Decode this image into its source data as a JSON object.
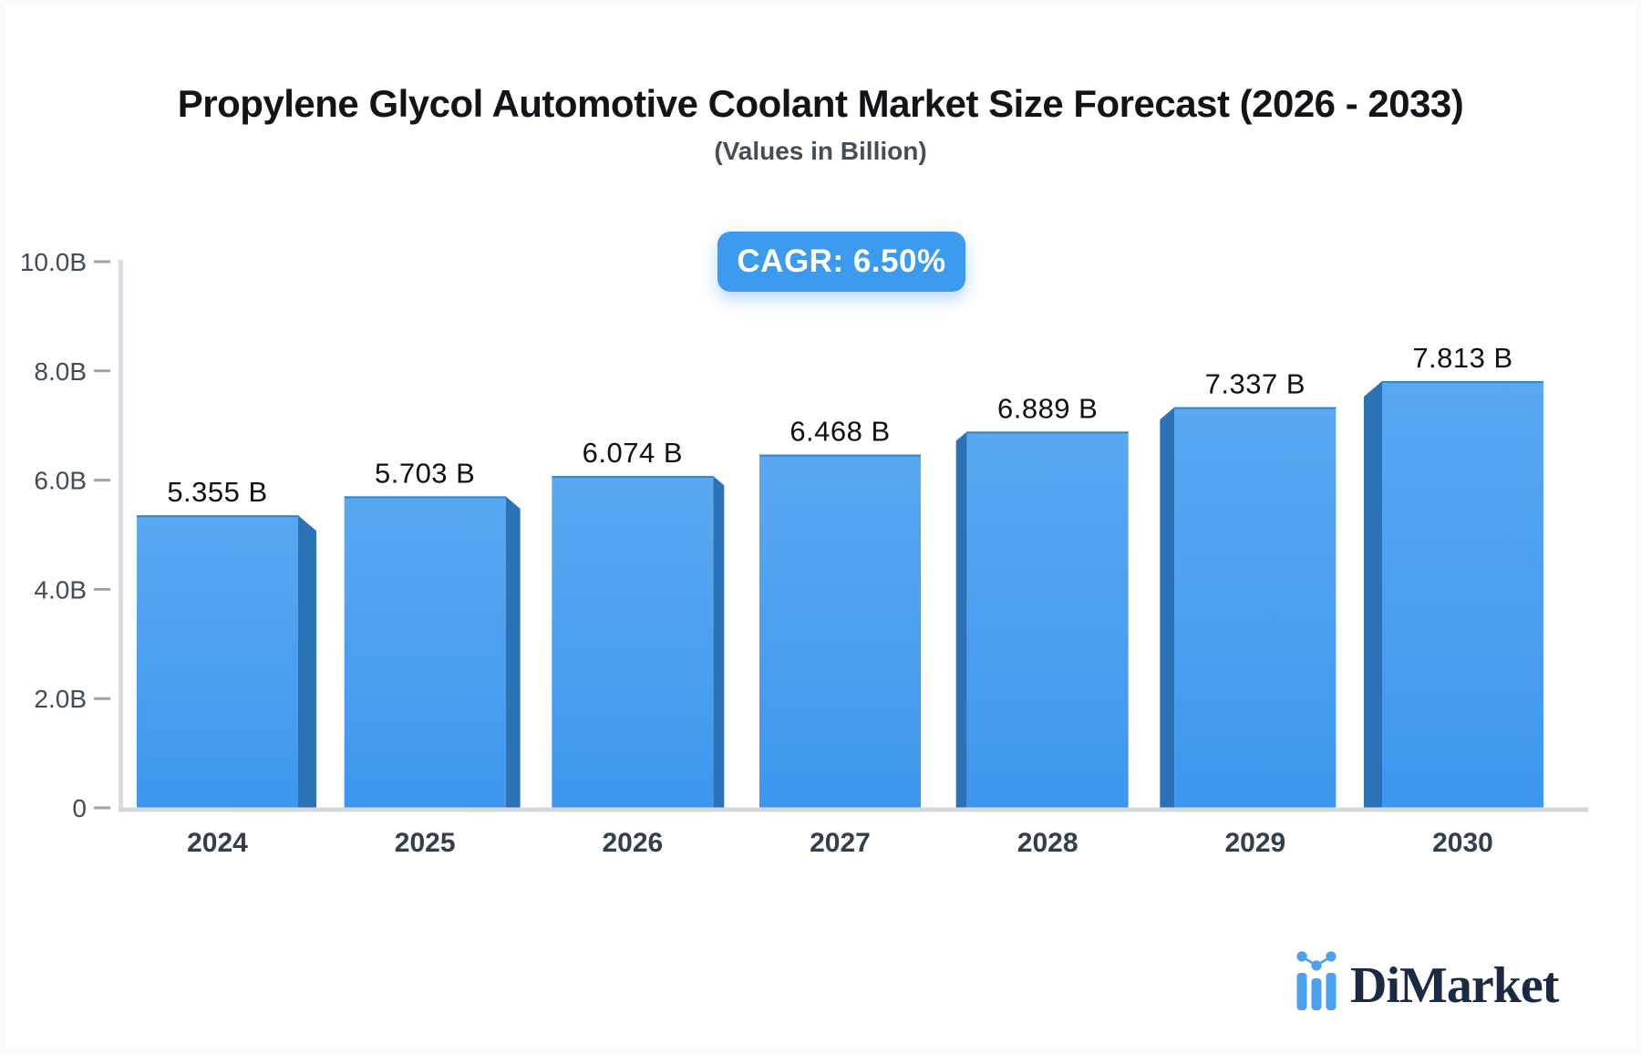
{
  "header": {
    "title": "Propylene Glycol Automotive Coolant Market Size Forecast (2026 - 2033)",
    "subtitle": "(Values in Billion)"
  },
  "badge": {
    "label": "CAGR: 6.50%"
  },
  "chart_data": {
    "type": "bar",
    "title": "Propylene Glycol Automotive Coolant Market Size Forecast (2026 - 2033)",
    "subtitle": "(Values in Billion)",
    "unit": "Billion",
    "categories": [
      "2024",
      "2025",
      "2026",
      "2027",
      "2028",
      "2029",
      "2030"
    ],
    "values": [
      5.355,
      5.703,
      6.074,
      6.468,
      6.889,
      7.337,
      7.813
    ],
    "value_labels": [
      "5.355 B",
      "5.703 B",
      "6.074 B",
      "6.468 B",
      "6.889 B",
      "7.337 B",
      "7.813 B"
    ],
    "ylim": [
      0,
      10
    ],
    "yticks": [
      {
        "value": 0,
        "label": "0"
      },
      {
        "value": 2,
        "label": "2.0B"
      },
      {
        "value": 4,
        "label": "4.0B"
      },
      {
        "value": 6,
        "label": "6.0B"
      },
      {
        "value": 8,
        "label": "8.0B"
      },
      {
        "value": 10,
        "label": "10.0B"
      }
    ],
    "grid": false,
    "legend": false,
    "annotations": [
      "CAGR: 6.50%"
    ]
  },
  "colors": {
    "badge_bg": "#3d9bef",
    "bar_face_top": "#59a9f1",
    "bar_face_bottom": "#3e97ee",
    "bar_side": "#2b72b6",
    "bar_top_edge": "#3583c9",
    "axis_line": "#d9dce1",
    "baseline": "#d5d8dd",
    "tick_dash": "#9aa3ad",
    "logo_icon_blue": "#4ba1f1",
    "logo_text_navy": "#1a2a42"
  },
  "logo": {
    "text": "DiMarket",
    "icon": "mini-bar-chart-icon"
  }
}
